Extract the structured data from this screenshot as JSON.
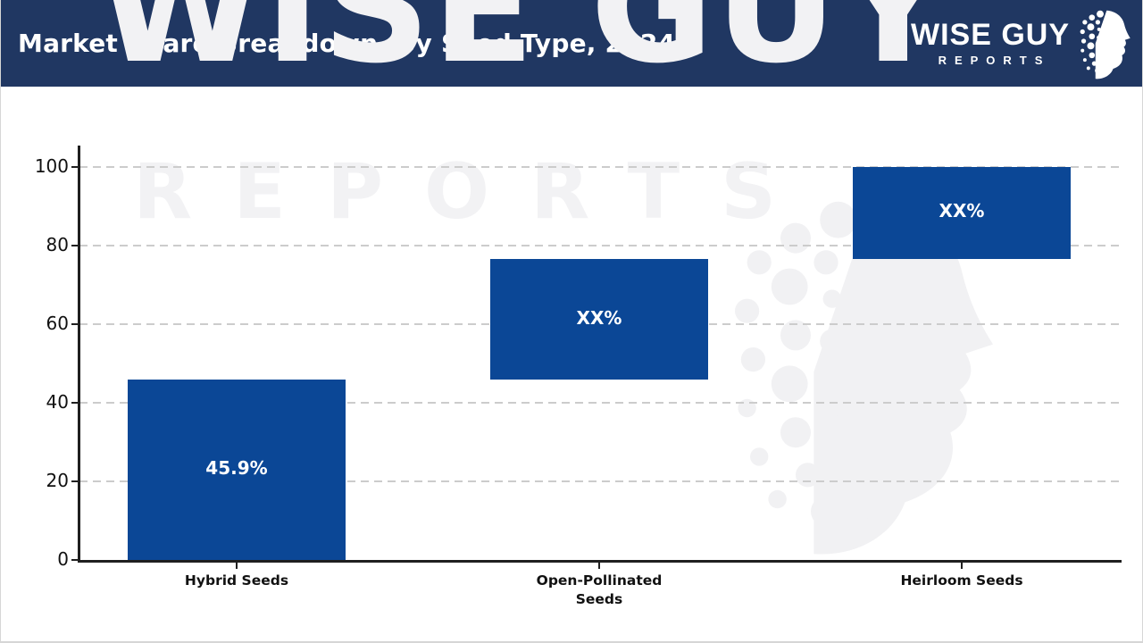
{
  "header": {
    "title": "Market Share Breakdown, By Seed Type, 2024",
    "logo": {
      "line1": "WISE GUY",
      "line2": "REPORTS"
    }
  },
  "watermark": {
    "line1": "WISE GUY",
    "line2": "REPORTS"
  },
  "colors": {
    "header_bg": "#203762",
    "bar": "#0b4796",
    "bar_label": "#ffffff",
    "grid": "#cccccc",
    "axis": "#1f1f1f",
    "watermark": "#f2f2f4"
  },
  "chart_data": {
    "type": "bar",
    "subtype": "waterfall-breakdown",
    "title": "Market Share Breakdown, By Seed Type, 2024",
    "categories": [
      "Hybrid Seeds",
      "Open-Pollinated Seeds",
      "Heirloom Seeds"
    ],
    "segments": [
      {
        "category": "Hybrid Seeds",
        "start": 0,
        "end": 45.9,
        "label": "45.9%"
      },
      {
        "category": "Open-Pollinated Seeds",
        "start": 45.9,
        "end": 76.6,
        "label": "XX%"
      },
      {
        "category": "Heirloom Seeds",
        "start": 76.6,
        "end": 100,
        "label": "XX%"
      }
    ],
    "xlabel": "",
    "ylabel": "",
    "ylim": [
      0,
      100
    ],
    "yticks": [
      0,
      20,
      40,
      60,
      80,
      100
    ],
    "grid": "horizontal-dashed",
    "legend": "none"
  }
}
